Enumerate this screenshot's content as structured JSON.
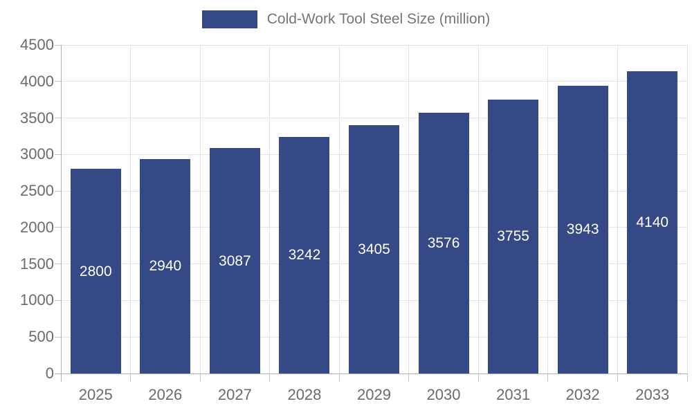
{
  "chart_data": {
    "type": "bar",
    "series_name": "Cold-Work Tool Steel Size (million)",
    "categories": [
      "2025",
      "2026",
      "2027",
      "2028",
      "2029",
      "2030",
      "2031",
      "2032",
      "2033"
    ],
    "values": [
      2800,
      2940,
      3087,
      3242,
      3405,
      3576,
      3755,
      3943,
      4140
    ],
    "ylim": [
      0,
      4500
    ],
    "yticks": [
      0,
      500,
      1000,
      1500,
      2000,
      2500,
      3000,
      3500,
      4000,
      4500
    ],
    "grid": true,
    "legend_position": "top",
    "value_labels": "inside-center"
  },
  "colors": {
    "bar": "#364987",
    "value_label": "#ffffff",
    "axis_line": "#b0b0b0",
    "grid_line": "#e3e3e3",
    "tick_line": "#c4c4c4",
    "tick_label": "#6b6b6b",
    "legend_text": "#757575",
    "background": "#ffffff"
  }
}
